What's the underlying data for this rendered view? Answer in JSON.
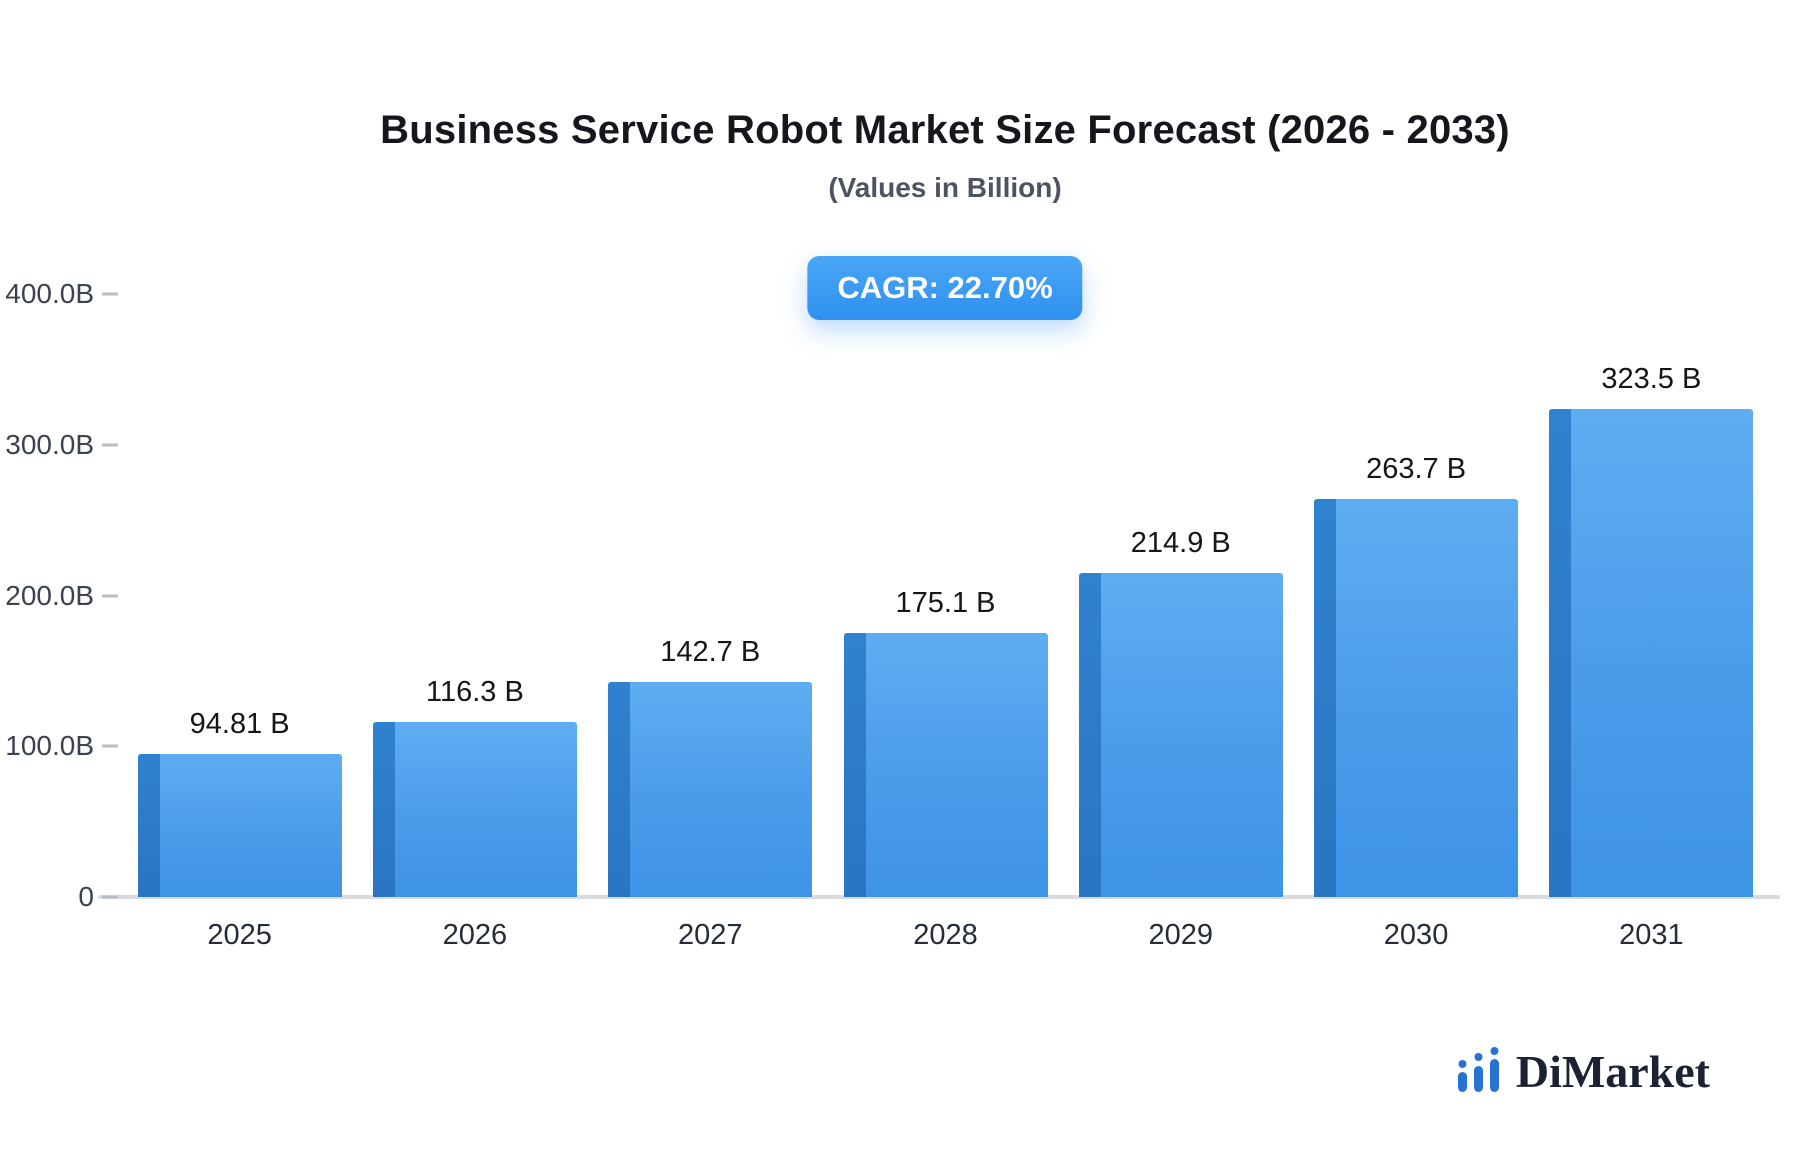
{
  "title": "Business Service Robot Market Size Forecast (2026 - 2033)",
  "subtitle": "(Values in Billion)",
  "cagr_badge": "CAGR: 22.70%",
  "logo": {
    "text": "DiMarket"
  },
  "colors": {
    "bar_face": "#4a9ceb",
    "bar_side": "#2c7ac8",
    "badge_blue": "#3a9af2",
    "axis_gray": "#d9dbdf",
    "logo_icon_blue": "#2673d3"
  },
  "chart_data": {
    "type": "bar",
    "categories": [
      "2025",
      "2026",
      "2027",
      "2028",
      "2029",
      "2030",
      "2031"
    ],
    "values": [
      94.81,
      116.3,
      142.7,
      175.1,
      214.9,
      263.7,
      323.5
    ],
    "value_labels": [
      "94.81 B",
      "116.3 B",
      "142.7 B",
      "175.1 B",
      "214.9 B",
      "263.7 B",
      "323.5 B"
    ],
    "title": "Business Service Robot Market Size Forecast (2026 - 2033)",
    "subtitle": "(Values in Billion)",
    "annotation": "CAGR: 22.70%",
    "xlabel": "",
    "ylabel": "",
    "ylim": [
      0,
      400
    ],
    "ytick_labels": [
      "400.0B",
      "300.0B",
      "200.0B",
      "100.0B",
      "0"
    ],
    "ytick_values": [
      400,
      300,
      200,
      100,
      0
    ],
    "grid": false,
    "legend": false
  }
}
